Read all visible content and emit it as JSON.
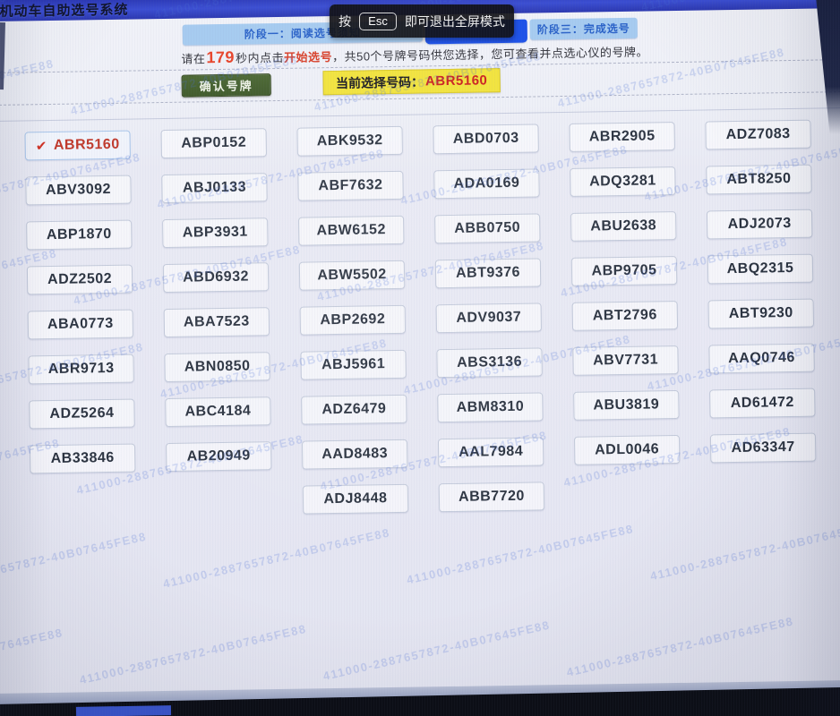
{
  "app": {
    "title": "机动车自助选号系统"
  },
  "fullscreen_tip": {
    "prefix": "按",
    "key": "Esc",
    "suffix": "即可退出全屏模式"
  },
  "stages": {
    "stage1": "阶段一：阅读选号须知",
    "stage3": "阶段三：完成选号"
  },
  "notice": {
    "pre": "请在",
    "seconds": "179",
    "mid": "秒内点击",
    "link": "开始选号",
    "post": "，共50个号牌号码供您选择，您可查看并点选心仪的号牌。"
  },
  "actions": {
    "confirm_label": "确认号牌"
  },
  "selection": {
    "label": "当前选择号码：",
    "plate": "ABR5160"
  },
  "watermark": {
    "text": "411000-2887657872-40B07645FE88"
  },
  "plates": {
    "selected": "ABR5160",
    "check_icon": "✔",
    "rows": [
      [
        "ABR5160",
        "ABP0152",
        "ABK9532",
        "ABD0703",
        "ABR2905",
        "ADZ7083"
      ],
      [
        "ABV3092",
        "ABJ0133",
        "ABF7632",
        "ADA0169",
        "ADQ3281",
        "ABT8250"
      ],
      [
        "ABP1870",
        "ABP3931",
        "ABW6152",
        "ABB0750",
        "ABU2638",
        "ADJ2073"
      ],
      [
        "ADZ2502",
        "ABD6932",
        "ABW5502",
        "ABT9376",
        "ABP9705",
        "ABQ2315"
      ],
      [
        "ABA0773",
        "ABA7523",
        "ABP2692",
        "ADV9037",
        "ABT2796",
        "ABT9230"
      ],
      [
        "ABR9713",
        "ABN0850",
        "ABJ5961",
        "ABS3136",
        "ABV7731",
        "AAQ0746"
      ],
      [
        "ADZ5264",
        "ABC4184",
        "ADZ6479",
        "ABM8310",
        "ABU3819",
        "AD61472"
      ],
      [
        "AB33846",
        "AB20949",
        "AAD8483",
        "AAL7984",
        "ADL0046",
        "AD63347"
      ],
      [
        null,
        null,
        "ADJ8448",
        "ABB7720",
        null,
        null
      ]
    ]
  },
  "colors": {
    "header_blue": "#3b4ed2",
    "tab_light_blue": "#a6cbf0",
    "tab_active_blue": "#1c50e8",
    "confirm_green": "#3f5a2a",
    "highlight_yellow": "#f2e33c",
    "alert_red": "#d8402a",
    "plate_text": "#2b3340",
    "watermark_blue": "#4a6fd4"
  }
}
